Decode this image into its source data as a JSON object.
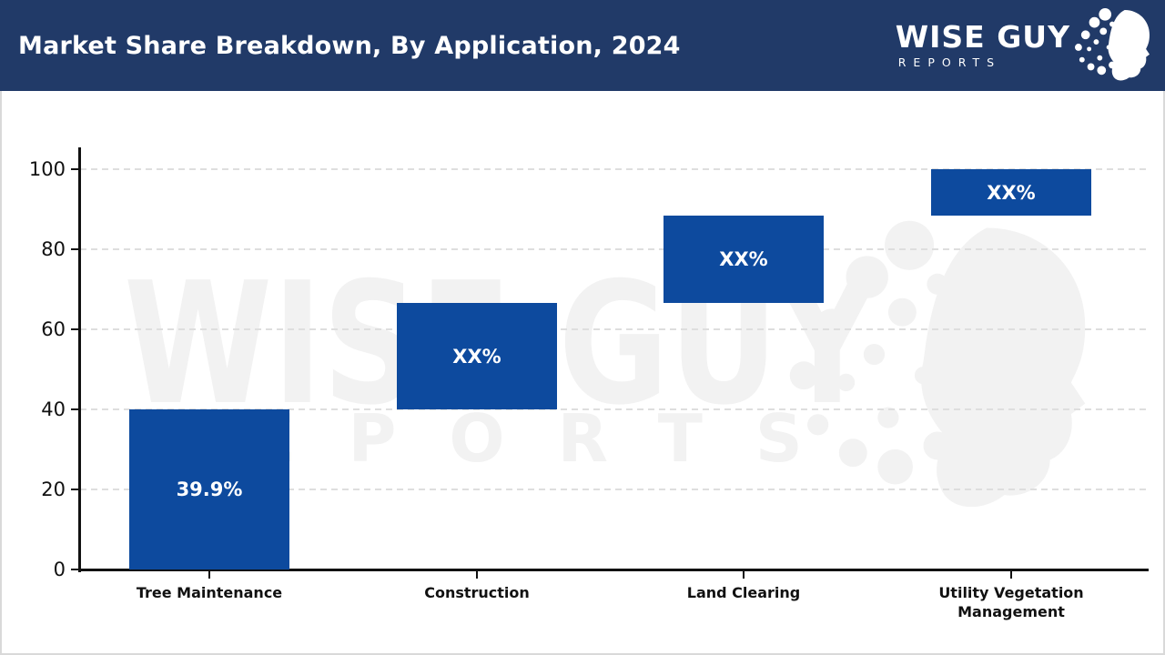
{
  "header": {
    "title": "Market Share Breakdown, By Application, 2024",
    "logo": {
      "line1": "WISE GUY",
      "line2": "REPORTS"
    }
  },
  "watermark": {
    "line1": "WISE GUY",
    "line2": "REPORTS"
  },
  "chart_data": {
    "type": "bar",
    "subtype": "floating-waterfall-breakdown",
    "title": "Market Share Breakdown, By Application, 2024",
    "unit": "%",
    "categories": [
      "Tree Maintenance",
      "Construction",
      "Land Clearing",
      "Utility Vegetation Management"
    ],
    "bars": [
      {
        "category": "Tree Maintenance",
        "start": 0,
        "end": 39.9,
        "value": 39.9,
        "label": "39.9%"
      },
      {
        "category": "Construction",
        "start": 39.9,
        "end": 66.5,
        "value": 26.6,
        "label": "XX%"
      },
      {
        "category": "Land Clearing",
        "start": 66.5,
        "end": 88.4,
        "value": 21.9,
        "label": "XX%"
      },
      {
        "category": "Utility Vegetation Management",
        "start": 88.4,
        "end": 100.0,
        "value": 11.6,
        "label": "XX%"
      }
    ],
    "yticks": [
      0,
      20,
      40,
      60,
      80,
      100
    ],
    "ylim": [
      0,
      104
    ],
    "xlabel": "",
    "ylabel": "",
    "grid": "horizontal-dashed",
    "legend": false,
    "colors": {
      "bar": "#0d4a9e",
      "header_bg": "#213a68",
      "gridline": "#dedede",
      "axis": "#111111",
      "bar_label": "#ffffff",
      "watermark": "#f2f2f2"
    }
  }
}
